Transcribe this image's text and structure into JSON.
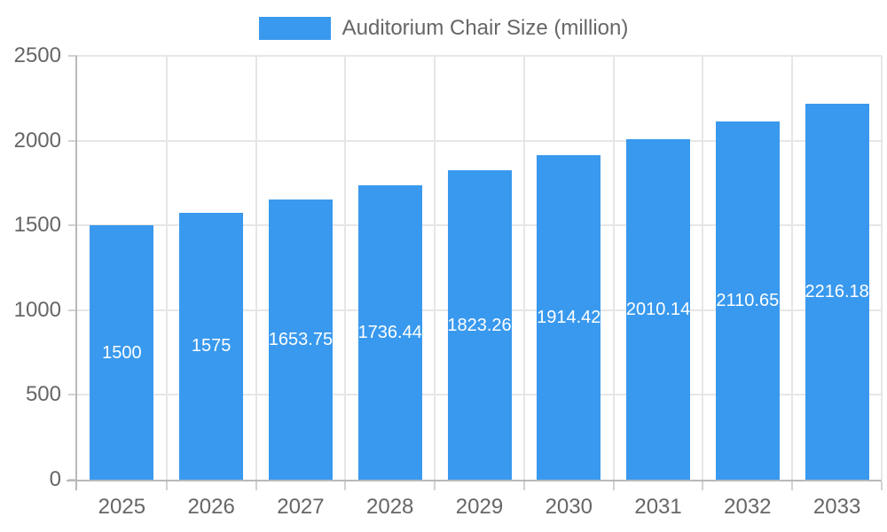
{
  "legend": {
    "label": "Auditorium Chair Size (million)"
  },
  "chart_data": {
    "type": "bar",
    "title": "Auditorium Chair Size (million)",
    "series_name": "Auditorium Chair Size (million)",
    "categories": [
      "2025",
      "2026",
      "2027",
      "2028",
      "2029",
      "2030",
      "2031",
      "2032",
      "2033"
    ],
    "values": [
      1500,
      1575,
      1653.75,
      1736.44,
      1823.26,
      1914.42,
      2010.14,
      2110.65,
      2216.18
    ],
    "value_labels": [
      "1500",
      "1575",
      "1653.75",
      "1736.44",
      "1823.26",
      "1914.42",
      "2010.14",
      "2110.65",
      "2216.18"
    ],
    "xlabel": "",
    "ylabel": "",
    "ylim": [
      0,
      2500
    ],
    "y_ticks": [
      0,
      500,
      1000,
      1500,
      2000,
      2500
    ],
    "grid": true,
    "legend_position": "top",
    "colors": {
      "bar": "#3999EE",
      "grid": "#e6e6e6",
      "tick": "#d2d2d2",
      "axis": "#b9b9b9",
      "text": "#666666",
      "value_label": "#ffffff",
      "background": "#ffffff"
    }
  }
}
